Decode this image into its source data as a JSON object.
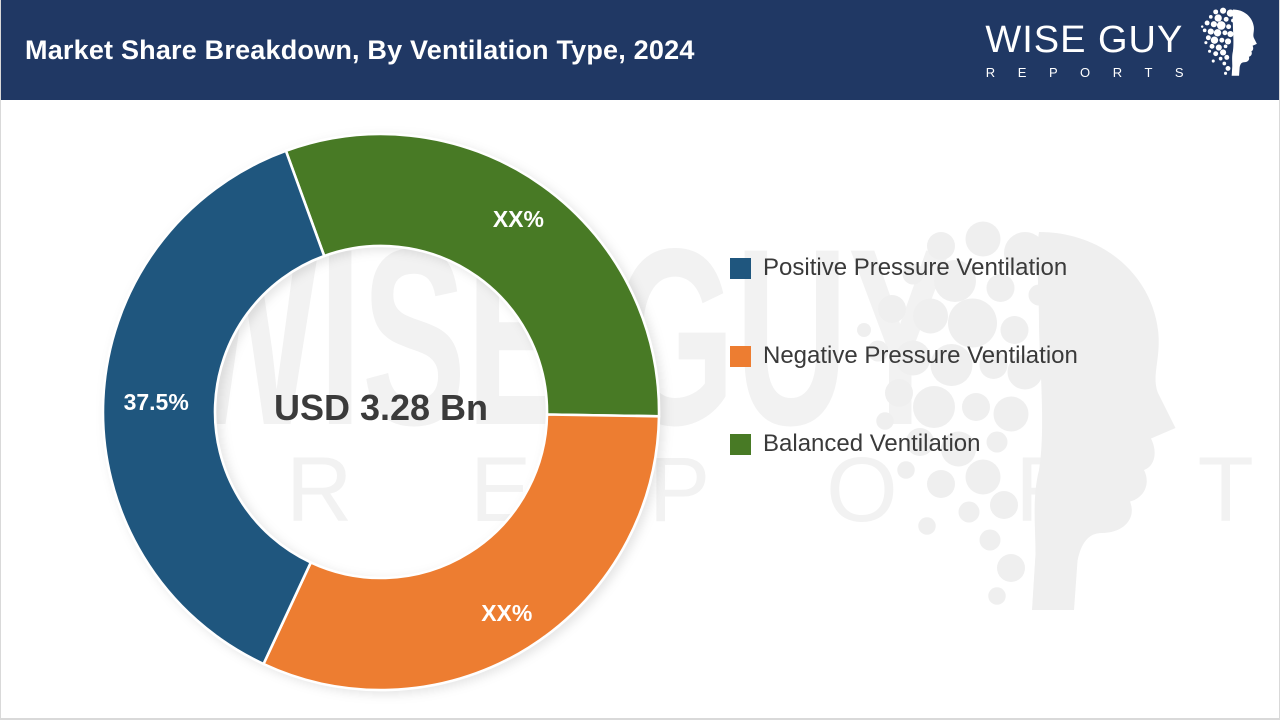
{
  "header": {
    "title": "Market Share Breakdown, By Ventilation Type, 2024",
    "logo": {
      "line1": "WISE GUY",
      "line2": "R E P O R T S"
    }
  },
  "watermark": {
    "line1": "WISE GUY",
    "line2": "R E P O R T S"
  },
  "colors": {
    "header_bg": "#203864",
    "positive_pressure_blue": "#1f567e",
    "negative_pressure_orange": "#ed7d31",
    "balanced_green": "#487a25",
    "center_text": "#3b3b3b",
    "legend_text": "#3a3a3a",
    "page_border": "#d9d9d9",
    "watermark_gray": "#f2f2f2"
  },
  "chart_data": {
    "type": "pie",
    "subtype": "donut",
    "title": "Market Share Breakdown, By Ventilation Type, 2024",
    "total_label": "USD 3.28 Bn",
    "start_angle_deg": 110,
    "direction": "clockwise",
    "segments": [
      {
        "name": "Balanced Ventilation",
        "value_pct": 30.8,
        "display_label": "XX%",
        "color": "#487a25"
      },
      {
        "name": "Negative Pressure Ventilation",
        "value_pct": 31.7,
        "display_label": "XX%",
        "color": "#ed7d31"
      },
      {
        "name": "Positive Pressure Ventilation",
        "value_pct": 37.5,
        "display_label": "37.5%",
        "color": "#1f567e"
      }
    ],
    "legend_position": "right"
  },
  "legend": {
    "items": [
      {
        "label": "Positive Pressure Ventilation",
        "color": "#1f567e"
      },
      {
        "label": "Negative Pressure Ventilation",
        "color": "#ed7d31"
      },
      {
        "label": "Balanced Ventilation",
        "color": "#487a25"
      }
    ]
  }
}
